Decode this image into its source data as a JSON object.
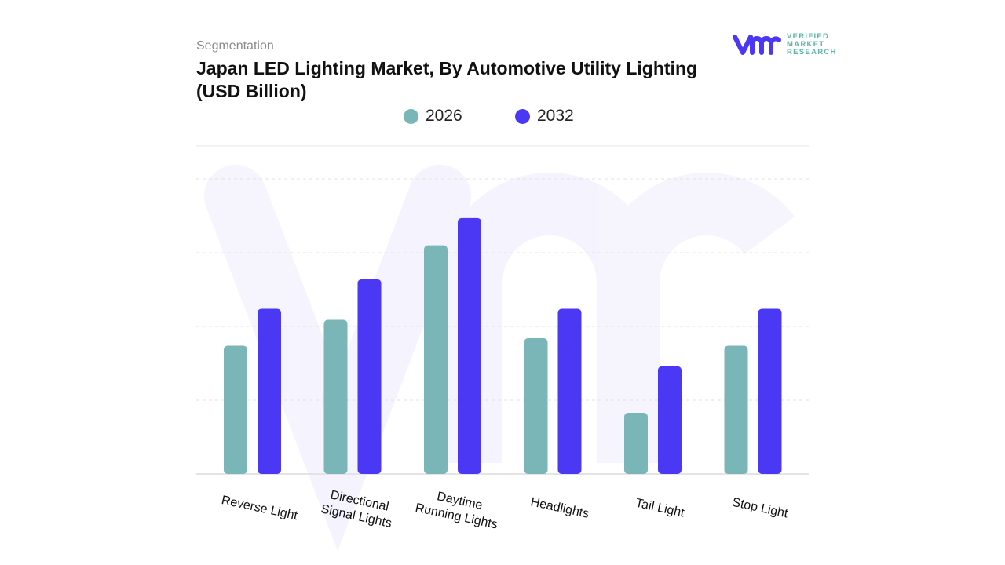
{
  "header": {
    "segment_label": "Segmentation",
    "title": "Japan LED Lighting Market, By Automotive Utility Lighting (USD Billion)"
  },
  "logo": {
    "lines": [
      "VERIFIED",
      "MARKET",
      "RESEARCH"
    ],
    "mark": "vmr"
  },
  "chart_data": {
    "type": "bar",
    "title": "Japan LED Lighting Market, By Automotive Utility Lighting (USD Billion)",
    "categories": [
      [
        "Reverse  Light"
      ],
      [
        "Directional",
        "Signal Lights"
      ],
      [
        "Daytime",
        "Running  Lights"
      ],
      [
        "Headlights"
      ],
      [
        "Tail Light"
      ],
      [
        "Stop Light"
      ]
    ],
    "series": [
      {
        "name": "2026",
        "color": "#7ab5b8",
        "values": [
          1.74,
          2.09,
          3.1,
          1.84,
          0.83,
          1.74
        ]
      },
      {
        "name": "2032",
        "color": "#4b38f5",
        "values": [
          2.24,
          2.64,
          3.47,
          2.24,
          1.46,
          2.24
        ]
      }
    ],
    "ylim": [
      0,
      4.5
    ],
    "y_tick_labels_shown": false,
    "grid": true,
    "legend": "top-center",
    "xlabel": "",
    "ylabel": ""
  }
}
